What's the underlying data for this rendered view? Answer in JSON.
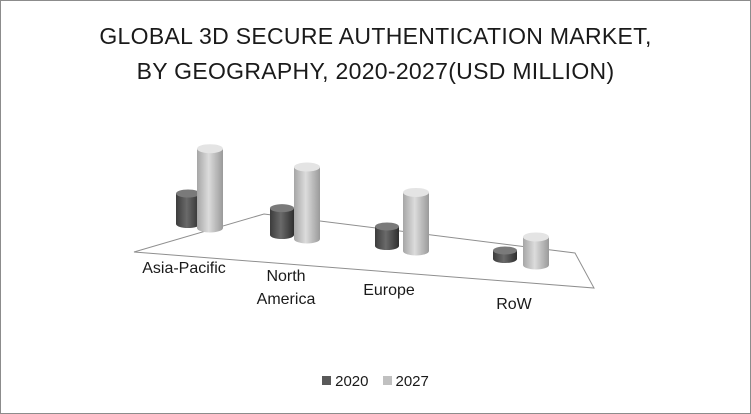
{
  "chart_data": {
    "type": "bar",
    "title_lines": [
      "GLOBAL 3D SECURE AUTHENTICATION MARKET,",
      "BY GEOGRAPHY, 2020-2027(USD MILLION)"
    ],
    "categories": [
      "Asia-Pacific",
      "North America",
      "Europe",
      "RoW"
    ],
    "category_label_lines": [
      [
        "Asia-Pacific"
      ],
      [
        "North",
        "America"
      ],
      [
        "Europe"
      ],
      [
        "RoW"
      ]
    ],
    "series": [
      {
        "name": "2020",
        "values": [
          25,
          22,
          16,
          7
        ]
      },
      {
        "name": "2027",
        "values": [
          65,
          59,
          48,
          23
        ]
      }
    ],
    "colors": {
      "2020": "#595959",
      "2027": "#c0c0c0"
    },
    "style": "3d-cylinder",
    "axis_labels_visible": false,
    "legend_position": "bottom"
  }
}
